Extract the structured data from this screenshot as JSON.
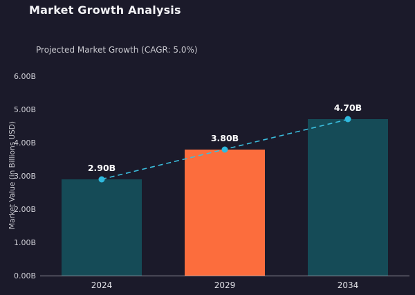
{
  "header": {
    "title": "Market Growth Analysis"
  },
  "chart": {
    "subtitle": "Projected Market Growth (CAGR: 5.0%)",
    "y_axis_title": "Market Value (in Billions USD)"
  },
  "colors": {
    "background": "#1b1a2a",
    "bar_teal": "#154b57",
    "bar_orange": "#fc6d3d",
    "trend_line": "#3bbede",
    "marker": "#2fb9de",
    "axis_line": "#9a9aa5",
    "title_text": "#f2f2f5",
    "tick_text": "#cfcfd6"
  },
  "chart_data": {
    "type": "bar",
    "title": "Projected Market Growth (CAGR: 5.0%)",
    "categories": [
      "2024",
      "2029",
      "2034"
    ],
    "values": [
      2.9,
      3.8,
      4.7
    ],
    "data_labels": [
      "2.90B",
      "3.80B",
      "4.70B"
    ],
    "bar_colors": [
      "#154b57",
      "#fc6d3d",
      "#154b57"
    ],
    "xlabel": "",
    "ylabel": "Market Value (in Billions USD)",
    "ylim": [
      0,
      6
    ],
    "ytick_labels": [
      "0.00B",
      "1.00B",
      "2.00B",
      "3.00B",
      "4.00B",
      "5.00B",
      "6.00B"
    ],
    "grid": false,
    "legend": "none",
    "cagr": "5.0%",
    "overlay_line": {
      "type": "line",
      "style": "dashed",
      "color": "#3bbede",
      "values": [
        2.9,
        3.8,
        4.7
      ]
    }
  }
}
